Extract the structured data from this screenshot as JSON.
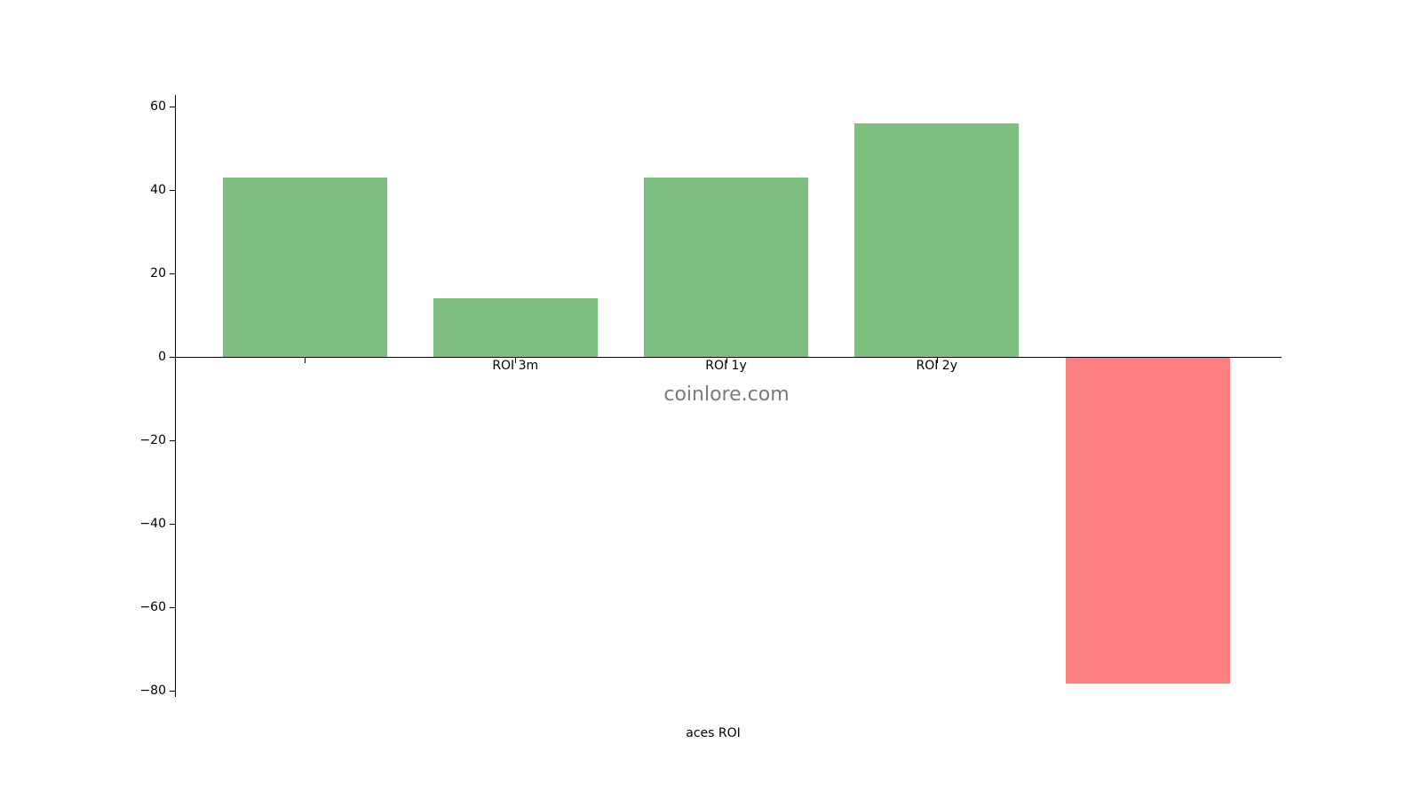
{
  "watermark": "coinlore.com",
  "chart_data": {
    "type": "bar",
    "categories": [
      "",
      "ROI 3m",
      "ROI 1y",
      "ROI 2y",
      ""
    ],
    "values": [
      43,
      14,
      43,
      56,
      -78
    ],
    "series": [
      {
        "name": "aces ROI",
        "values": [
          43,
          14,
          43,
          56,
          -78
        ]
      }
    ],
    "bar_colors": [
      "#7dbf7e",
      "#7dbf7e",
      "#7dbf7e",
      "#7dbf7e",
      "#ff8080"
    ],
    "positive_color": "#7dbf7e",
    "negative_color": "#ff8080",
    "title": "",
    "xlabel": "aces ROI",
    "ylabel": "",
    "yticks": [
      60,
      40,
      20,
      0,
      -20,
      -40,
      -60,
      -80
    ],
    "ytick_labels": [
      "60",
      "40",
      "20",
      "0",
      "−20",
      "−40",
      "−60",
      "−80"
    ],
    "ylim": [
      -81.5,
      62.8
    ],
    "grid": false,
    "legend": null,
    "axis_color": "#000000",
    "watermark": "coinlore.com",
    "watermark_color": "#7a7a7a",
    "xticks_with_marks": [
      0,
      1,
      2,
      3
    ]
  }
}
